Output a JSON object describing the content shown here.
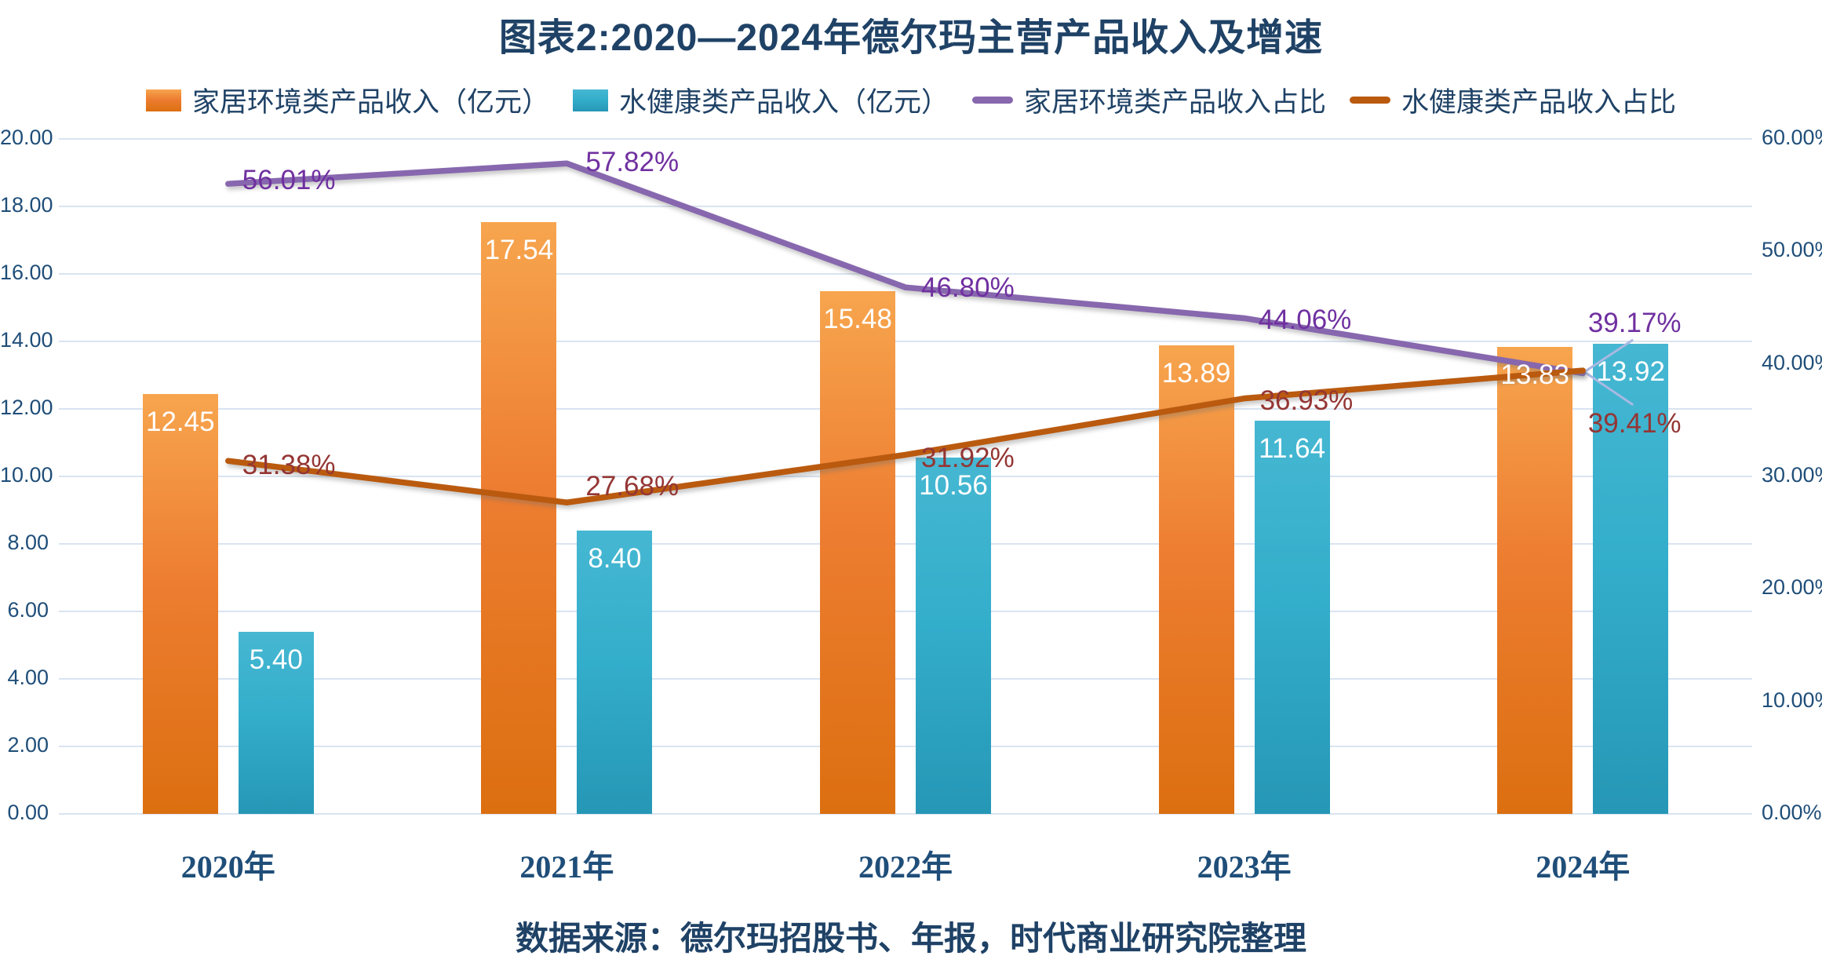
{
  "title": "图表2:2020—2024年德尔玛主营产品收入及增速",
  "legend": {
    "items": [
      {
        "label": "家居环境类产品收入（亿元）",
        "marker": "square",
        "color": "#ED7D31"
      },
      {
        "label": "水健康类产品收入（亿元）",
        "marker": "square",
        "color": "#33AECB"
      },
      {
        "label": "家居环境类产品收入占比",
        "marker": "line",
        "color": "#8767AE"
      },
      {
        "label": "水健康类产品收入占比",
        "marker": "line",
        "color": "#BA5A0F"
      }
    ]
  },
  "source_note": "数据来源：德尔玛招股书、年报，时代商业研究院整理",
  "colors": {
    "title_text": "#1F4266",
    "axis_text": "#1F4E79",
    "gridline": "#D9E4F1",
    "bar_home": "#ED7D31",
    "bar_water": "#33AECB",
    "line_home_share": "#8767AE",
    "line_water_share": "#BA5A0F",
    "label_home_share": "#7030A0",
    "label_water_share": "#943634",
    "leader_line": "#A9B9E2",
    "bar_value_text": "#FFFFFF"
  },
  "chart_data": {
    "type": "bar",
    "subtype": "combo-bar-line-dual-axis",
    "categories": [
      "2020年",
      "2021年",
      "2022年",
      "2023年",
      "2024年"
    ],
    "bar_series": [
      {
        "name": "家居环境类产品收入（亿元）",
        "axis": "left",
        "color": "#ED7D31",
        "values": [
          12.45,
          17.54,
          15.48,
          13.89,
          13.83
        ],
        "labels": [
          "12.45",
          "17.54",
          "15.48",
          "13.89",
          "13.83"
        ]
      },
      {
        "name": "水健康类产品收入（亿元）",
        "axis": "left",
        "color": "#33AECB",
        "values": [
          5.4,
          8.4,
          10.56,
          11.64,
          13.92
        ],
        "labels": [
          "5.40",
          "8.40",
          "10.56",
          "11.64",
          "13.92"
        ]
      }
    ],
    "line_series": [
      {
        "name": "家居环境类产品收入占比",
        "axis": "right",
        "color": "#8767AE",
        "label_color": "#7030A0",
        "values": [
          56.01,
          57.82,
          46.8,
          44.06,
          39.17
        ],
        "labels": [
          "56.01%",
          "57.82%",
          "46.80%",
          "44.06%",
          "39.17%"
        ]
      },
      {
        "name": "水健康类产品收入占比",
        "axis": "right",
        "color": "#BA5A0F",
        "label_color": "#943634",
        "values": [
          31.38,
          27.68,
          31.92,
          36.93,
          39.41
        ],
        "labels": [
          "31.38%",
          "27.68%",
          "31.92%",
          "36.93%",
          "39.41%"
        ]
      }
    ],
    "left_axis": {
      "min": 0,
      "max": 20,
      "step": 2,
      "ticks": [
        "0.00",
        "2.00",
        "4.00",
        "6.00",
        "8.00",
        "10.00",
        "12.00",
        "14.00",
        "16.00",
        "18.00",
        "20.00"
      ]
    },
    "right_axis": {
      "min": 0,
      "max": 60,
      "step": 10,
      "ticks": [
        "0.00%",
        "10.00%",
        "20.00%",
        "30.00%",
        "40.00%",
        "50.00%",
        "60.00%"
      ]
    },
    "grid": true,
    "legend_position": "top"
  }
}
